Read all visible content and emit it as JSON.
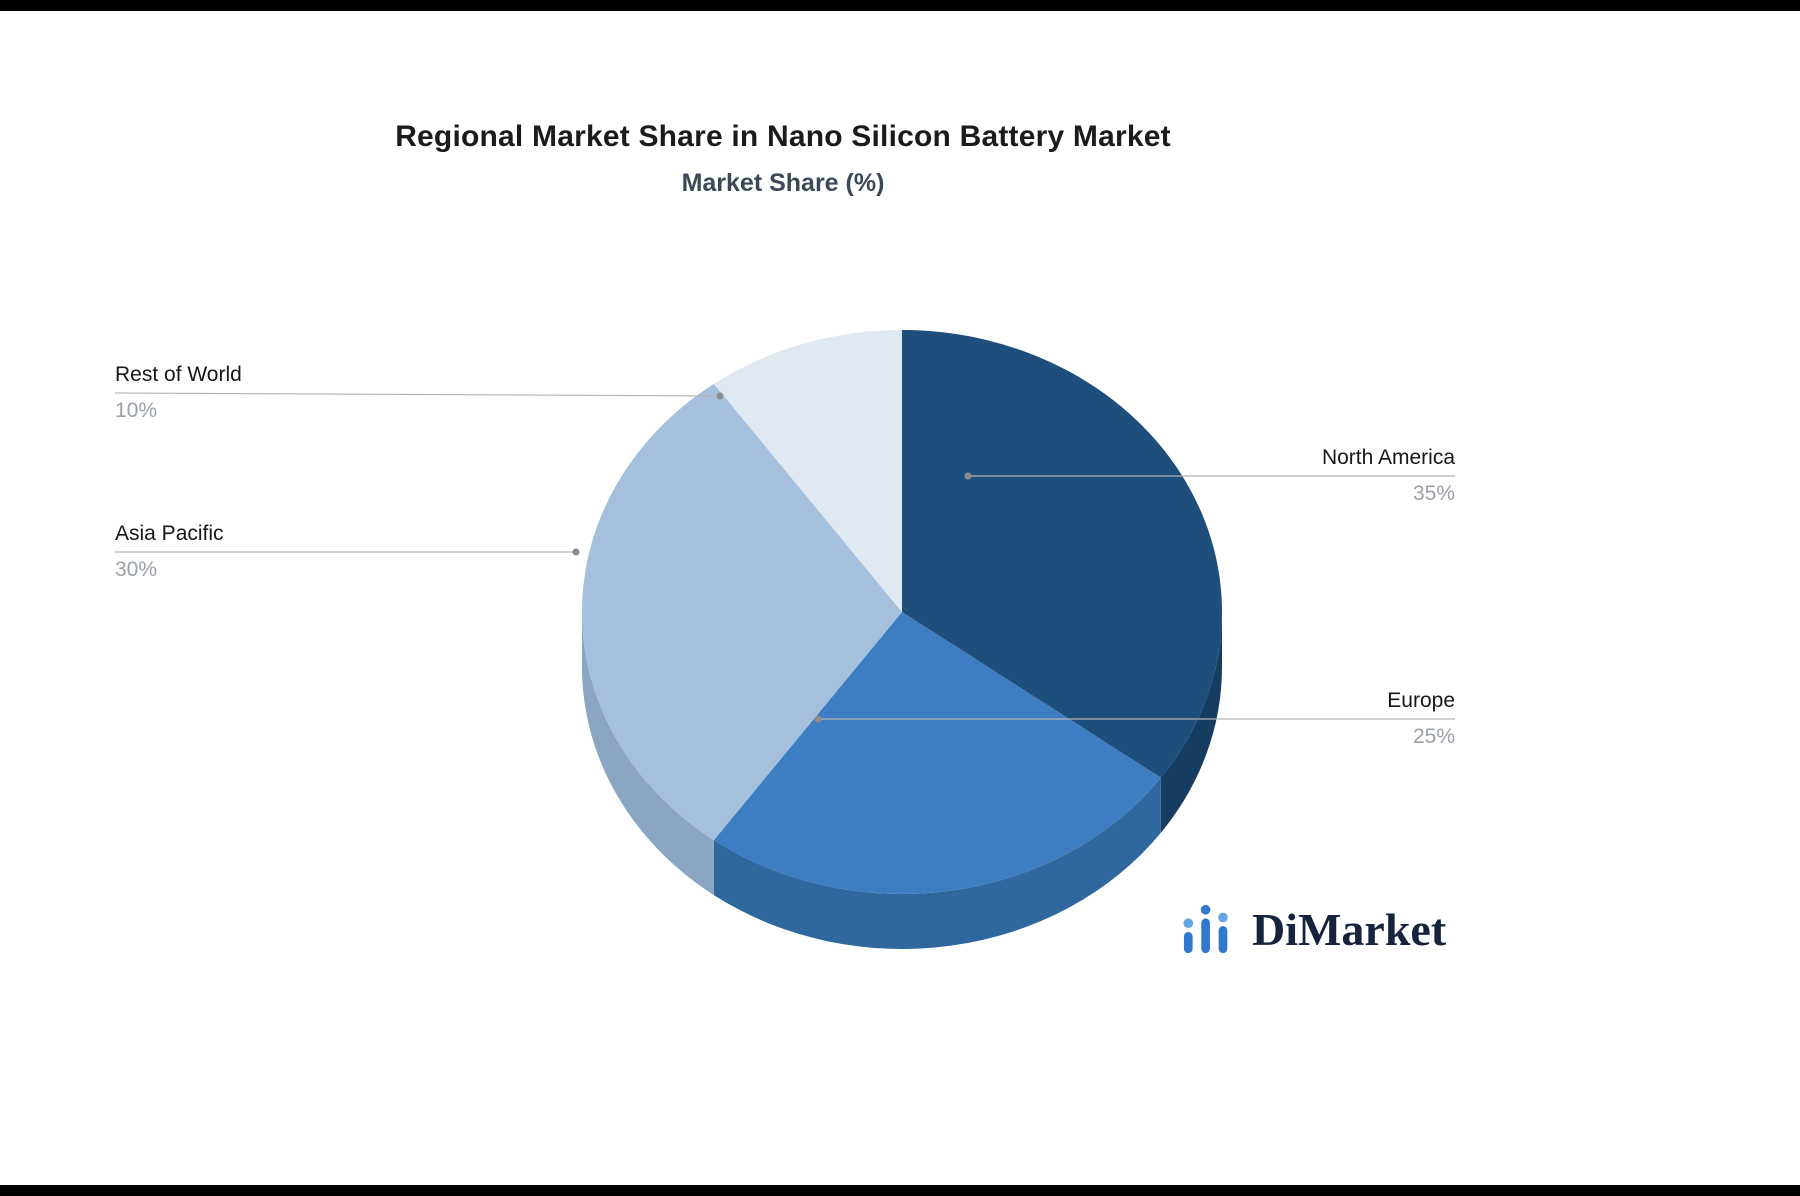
{
  "page": {
    "brand": "DiMarket"
  },
  "chart_data": {
    "type": "pie",
    "style": "3d",
    "title": "Regional Market Share in Nano Silicon Battery Market",
    "subtitle": "Market Share (%)",
    "unit": "%",
    "start_angle_deg": 0,
    "direction": "clockwise",
    "legend_position": "none",
    "labels_style": "outside-leader-lines",
    "slices": [
      {
        "label": "North America",
        "value": 35,
        "value_label": "35%",
        "color": "#1e4e7c",
        "side_color": "#163c60"
      },
      {
        "label": "Europe",
        "value": 25,
        "value_label": "25%",
        "color": "#3d7ec2",
        "side_color": "#2f689e"
      },
      {
        "label": "Asia Pacific",
        "value": 30,
        "value_label": "30%",
        "color": "#a5c0dc",
        "side_color": "#8aa6c2"
      },
      {
        "label": "Rest of World",
        "value": 10,
        "value_label": "10%",
        "color": "#e0e8f2",
        "side_color": "#c3cedd"
      }
    ],
    "label_text_color": "#17181a",
    "value_text_color": "#9aa0a6",
    "leader_line_color": "#b3b3b3"
  }
}
